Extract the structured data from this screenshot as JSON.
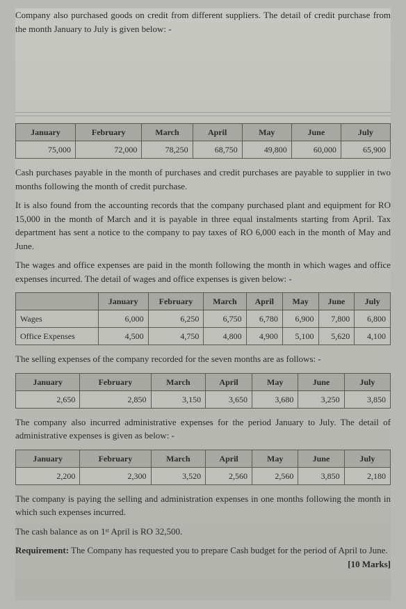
{
  "intro": "Company also purchased goods on credit from different suppliers. The detail of credit purchase from the month January to July is given below: -",
  "months": [
    "January",
    "February",
    "March",
    "April",
    "May",
    "June",
    "July"
  ],
  "creditPurchases": [
    "75,000",
    "72,000",
    "78,250",
    "68,750",
    "49,800",
    "60,000",
    "65,900"
  ],
  "para1": "Cash purchases payable in the month of purchases and credit purchases are payable to supplier in two months following the month of credit purchase.",
  "para2": "It is also found from the accounting records that the company purchased plant and equipment for RO 15,000 in the month of March and it is payable in three equal instalments starting from April. Tax department has sent a notice to the company to pay taxes of RO 6,000 each in the month of May and June.",
  "para3": "The wages and office expenses are paid in the month following the month in which wages and office expenses incurred. The detail of wages and office expenses is given below: -",
  "wagesLabel": "Wages",
  "officeLabel": "Office Expenses",
  "wages": [
    "6,000",
    "6,250",
    "6,750",
    "6,780",
    "6,900",
    "7,800",
    "6,800"
  ],
  "office": [
    "4,500",
    "4,750",
    "4,800",
    "4,900",
    "5,100",
    "5,620",
    "4,100"
  ],
  "sellingIntro": "The selling expenses of the company recorded for the seven months are as follows: -",
  "selling": [
    "2,650",
    "2,850",
    "3,150",
    "3,650",
    "3,680",
    "3,250",
    "3,850"
  ],
  "adminIntro": "The company also incurred administrative expenses for the period January to July. The detail of administrative expenses is given as below: -",
  "admin": [
    "2,200",
    "2,300",
    "3,520",
    "2,560",
    "2,560",
    "3,850",
    "2,180"
  ],
  "closing1": "The company is paying the selling and administration expenses in one months following the month in which such expenses incurred.",
  "closing2": "The cash balance as on 1ˢᵗ April is RO 32,500.",
  "reqLabel": "Requirement:",
  "reqText": " The Company has requested you to prepare Cash budget for the period of April to June.",
  "marks": "[10 Marks]"
}
